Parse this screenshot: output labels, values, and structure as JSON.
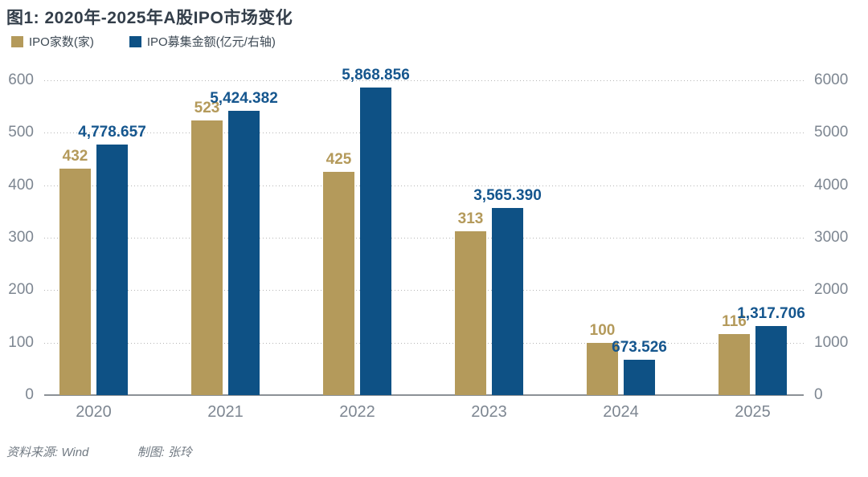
{
  "title": "图1: 2020年-2025年A股IPO市场变化",
  "colors": {
    "count_bar": "#b49a5b",
    "amount_bar": "#0e5185",
    "count_label": "#b49a5b",
    "amount_label": "#15568e"
  },
  "legend": {
    "items": [
      {
        "label": "IPO家数(家)",
        "color": "#b49a5b"
      },
      {
        "label": "IPO募集金额(亿元/右轴)",
        "color": "#0e5185"
      }
    ]
  },
  "footer": {
    "source": "资料来源: Wind",
    "credit": "制图: 张玲"
  },
  "chart_data": {
    "type": "bar",
    "title": "图1: 2020年-2025年A股IPO市场变化",
    "categories": [
      "2020",
      "2021",
      "2022",
      "2023",
      "2024",
      "2025"
    ],
    "series": [
      {
        "name": "IPO家数(家)",
        "axis": "left",
        "color": "#b49a5b",
        "values": [
          432,
          523,
          425,
          313,
          100,
          116
        ],
        "labels": [
          "432",
          "523",
          "425",
          "313",
          "100",
          "116"
        ]
      },
      {
        "name": "IPO募集金额(亿元/右轴)",
        "axis": "right",
        "color": "#0e5185",
        "values": [
          4778.657,
          5424.382,
          5868.856,
          3565.39,
          673.526,
          1317.706
        ],
        "labels": [
          "4,778.657",
          "5,424.382",
          "5,868.856",
          "3,565.390",
          "673.526",
          "1,317.706"
        ]
      }
    ],
    "left_axis": {
      "ticks": [
        0,
        100,
        200,
        300,
        400,
        500,
        600
      ],
      "min": 0,
      "max": 600
    },
    "right_axis": {
      "ticks": [
        0,
        1000,
        2000,
        3000,
        4000,
        5000,
        6000
      ],
      "min": 0,
      "max": 6000
    },
    "grid": true,
    "gridline_style": "dotted",
    "legend_position": "top-left"
  }
}
